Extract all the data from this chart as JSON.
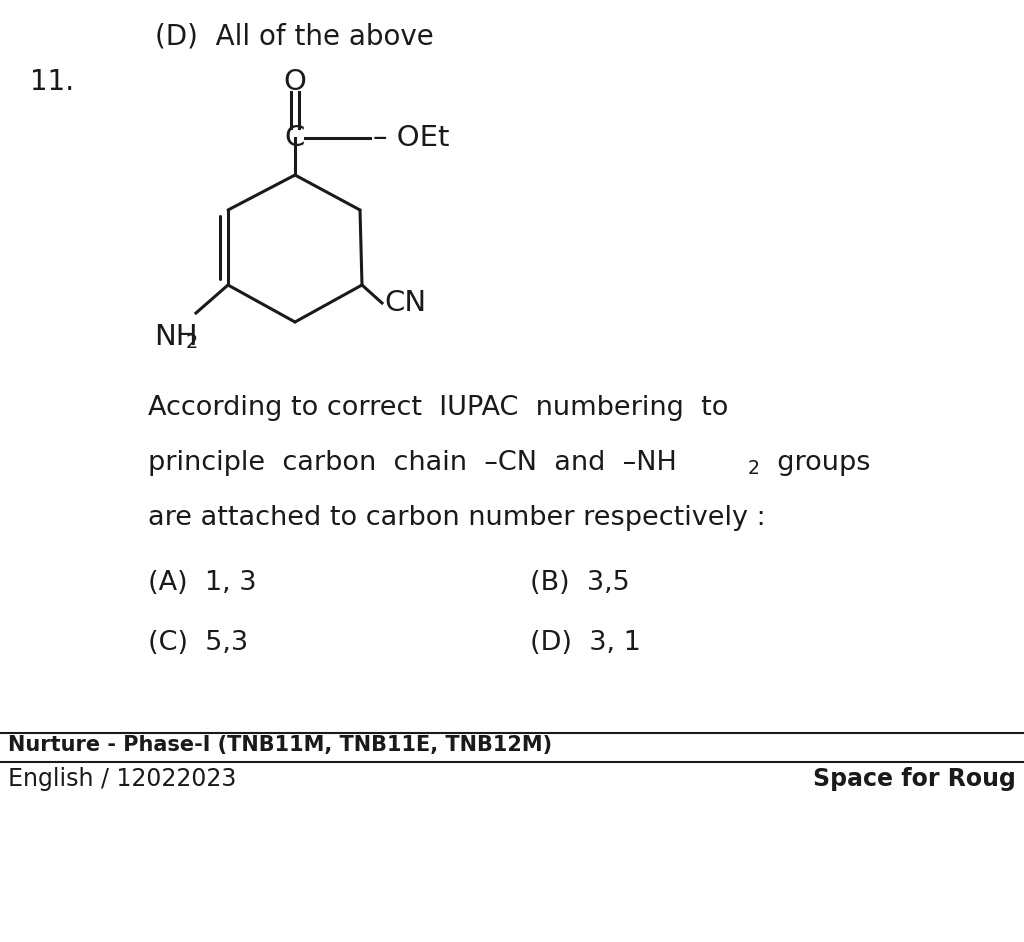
{
  "background_color": "#ffffff",
  "text_color": "#1a1a1a",
  "top_option": "(D)  All of the above",
  "question_number": "11.",
  "question_text_line1": "According to correct  IUPAC  numbering  to",
  "question_text_line3": "are attached to carbon number respectively :",
  "option_A": "(A)  1, 3",
  "option_B": "(B)  3,5",
  "option_C": "(C)  5,3",
  "option_D": "(D)  3, 1",
  "footer_left_bold": "Nurture - Phase-I (TNB11M, TNB11E, TNB12M)",
  "footer_left_normal": "English / 12022023",
  "footer_right_bold": "Space for Roug",
  "figsize": [
    10.24,
    9.42
  ],
  "dpi": 100
}
